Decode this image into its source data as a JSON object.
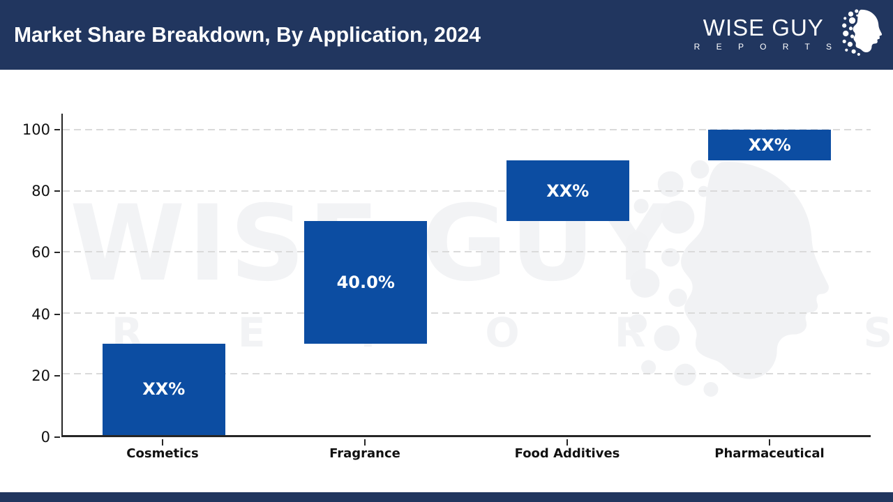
{
  "header": {
    "title": "Market Share Breakdown, By Application, 2024",
    "logo": {
      "line1": "WISE GUY",
      "line2": "R E P O R T S"
    }
  },
  "watermark": {
    "line1": "WISE GUY",
    "line2": "R E P O R T S"
  },
  "chart_data": {
    "type": "bar",
    "variant": "floating-segment market-share breakdown (waterfall style)",
    "title": "Market Share Breakdown, By Application, 2024",
    "categories": [
      "Cosmetics",
      "Fragrance",
      "Food Additives",
      "Pharmaceutical"
    ],
    "segments": [
      {
        "category": "Cosmetics",
        "start": 0,
        "end": 30,
        "value_label": "XX%"
      },
      {
        "category": "Fragrance",
        "start": 30,
        "end": 70,
        "value_label": "40.0%"
      },
      {
        "category": "Food Additives",
        "start": 70,
        "end": 90,
        "value_label": "XX%"
      },
      {
        "category": "Pharmaceutical",
        "start": 90,
        "end": 100,
        "value_label": "XX%"
      }
    ],
    "ylim": [
      0,
      100
    ],
    "yticks": [
      0,
      20,
      40,
      60,
      80,
      100
    ],
    "xlabel": "",
    "ylabel": "",
    "legend": null,
    "grid": "horizontal dashed",
    "colors": {
      "bar": "#0C4DA2",
      "bar_label": "#FFFFFF",
      "axis": "#262626",
      "grid": "#DADADA",
      "tick_label": "#111111"
    }
  },
  "theme": {
    "header_bg": "#21365F",
    "footer_bg": "#21365F",
    "body_bg": "#FFFFFF",
    "watermark_color": "#F2F3F5"
  }
}
